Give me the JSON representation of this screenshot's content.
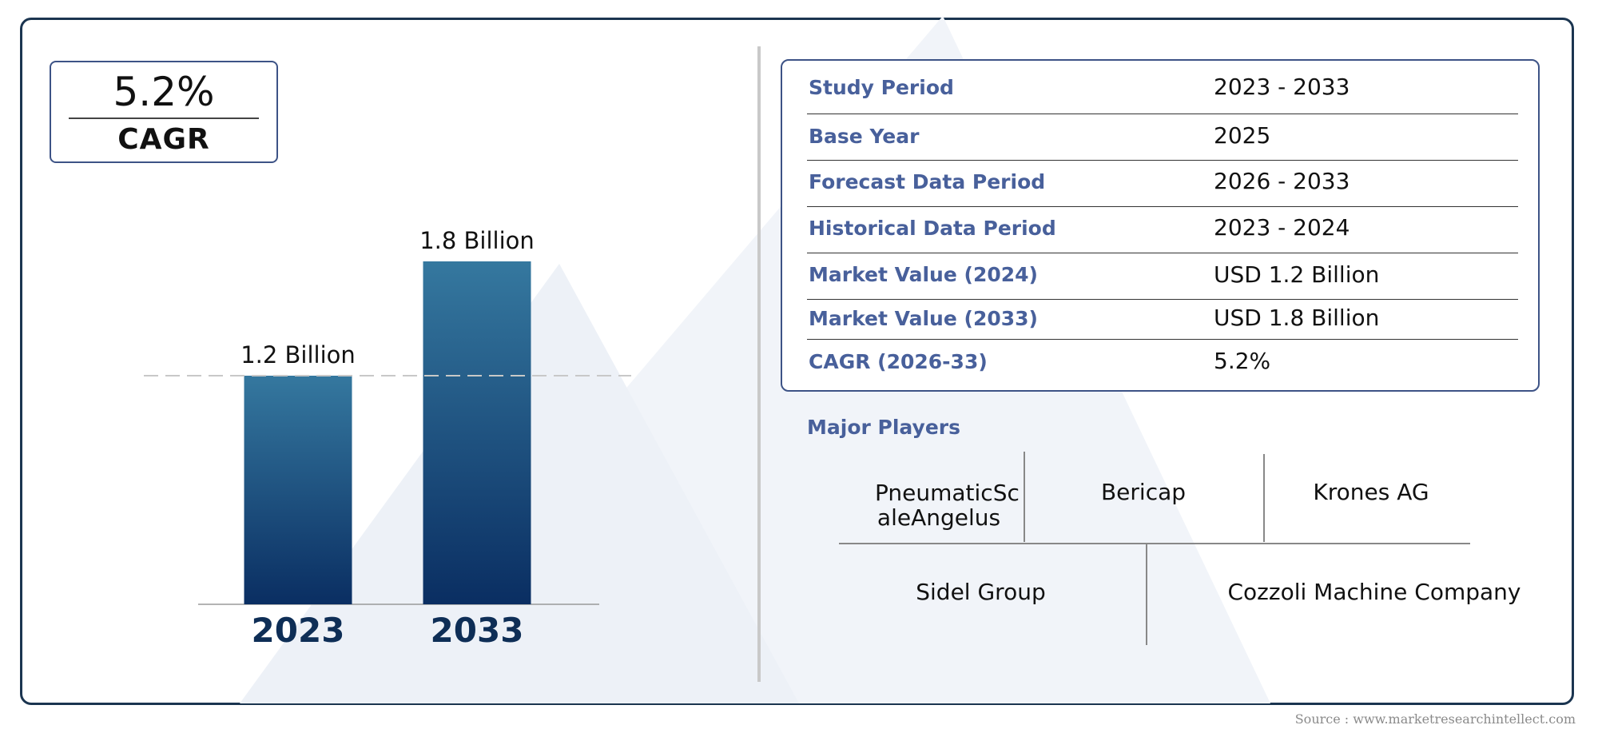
{
  "summary": {
    "cagr_value": "5.2%",
    "cagr_label": "CAGR"
  },
  "chart_data": {
    "type": "bar",
    "categories": [
      "2023",
      "2033"
    ],
    "values": [
      1.2,
      1.8
    ],
    "value_labels": [
      "1.2 Billion",
      "1.8 Billion"
    ],
    "bar_color_top": "#35789f",
    "bar_color_bottom": "#0a2e62",
    "reference_line": {
      "value": 1.2,
      "style": "dashed"
    },
    "ylim": [
      0,
      2.0
    ],
    "title": "",
    "xlabel": "",
    "ylabel": ""
  },
  "stats": [
    {
      "label": "Study Period",
      "value": "2023 - 2033"
    },
    {
      "label": "Base Year",
      "value": "2025"
    },
    {
      "label": "Forecast Data Period",
      "value": "2026 - 2033"
    },
    {
      "label": "Historical Data Period",
      "value": "2023 - 2024"
    },
    {
      "label": "Market Value (2024)",
      "value": "USD 1.2 Billion"
    },
    {
      "label": "Market Value (2033)",
      "value": "USD 1.8 Billion"
    },
    {
      "label": "CAGR (2026-33)",
      "value": "5.2%"
    }
  ],
  "players": {
    "title": "Major Players",
    "row1": [
      "PneumaticSc aleAngelus",
      "Bericap",
      "Krones AG"
    ],
    "row2": [
      "Sidel Group",
      "Cozzoli Machine Company"
    ]
  },
  "source": "Source : www.marketresearchintellect.com",
  "colors": {
    "accent": "#48609b",
    "border": "#3d5386",
    "frame": "#1b3550",
    "year_label": "#0e2e56"
  }
}
